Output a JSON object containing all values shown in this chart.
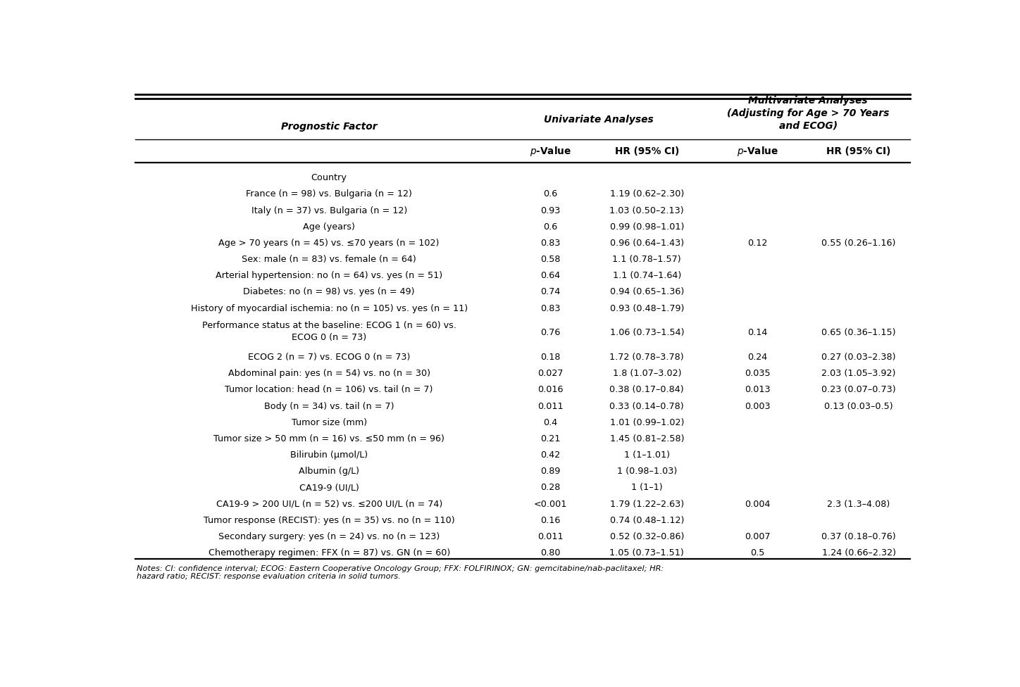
{
  "header1": "Prognostic Factor",
  "header2": "Univariate Analyses",
  "header3": "Multivariate Analyses\n(Adjusting for Age > 70 Years\nand ECOG)",
  "subheaders": [
    "p-Value",
    "HR (95% CI)",
    "p-Value",
    "HR (95% CI)"
  ],
  "notes": "Notes: CI: confidence interval; ECOG: Eastern Cooperative Oncology Group; FFX: FOLFIRINOX; GN: gemcitabine/nab-paclitaxel; HR:\nhazard ratio; RECIST: response evaluation criteria in solid tumors.",
  "rows": [
    {
      "factor": "Country",
      "pval1": "",
      "hr1": "",
      "pval2": "",
      "hr2": ""
    },
    {
      "factor": "France (n = 98) vs. Bulgaria (n = 12)",
      "pval1": "0.6",
      "hr1": "1.19 (0.62–2.30)",
      "pval2": "",
      "hr2": ""
    },
    {
      "factor": "Italy (n = 37) vs. Bulgaria (n = 12)",
      "pval1": "0.93",
      "hr1": "1.03 (0.50–2.13)",
      "pval2": "",
      "hr2": ""
    },
    {
      "factor": "Age (years)",
      "pval1": "0.6",
      "hr1": "0.99 (0.98–1.01)",
      "pval2": "",
      "hr2": ""
    },
    {
      "factor": "Age > 70 years (n = 45) vs. ≤70 years (n = 102)",
      "pval1": "0.83",
      "hr1": "0.96 (0.64–1.43)",
      "pval2": "0.12",
      "hr2": "0.55 (0.26–1.16)"
    },
    {
      "factor": "Sex: male (n = 83) vs. female (n = 64)",
      "pval1": "0.58",
      "hr1": "1.1 (0.78–1.57)",
      "pval2": "",
      "hr2": ""
    },
    {
      "factor": "Arterial hypertension: no (n = 64) vs. yes (n = 51)",
      "pval1": "0.64",
      "hr1": "1.1 (0.74–1.64)",
      "pval2": "",
      "hr2": ""
    },
    {
      "factor": "Diabetes: no (n = 98) vs. yes (n = 49)",
      "pval1": "0.74",
      "hr1": "0.94 (0.65–1.36)",
      "pval2": "",
      "hr2": ""
    },
    {
      "factor": "History of myocardial ischemia: no (n = 105) vs. yes (n = 11)",
      "pval1": "0.83",
      "hr1": "0.93 (0.48–1.79)",
      "pval2": "",
      "hr2": ""
    },
    {
      "factor": "Performance status at the baseline: ECOG 1 (n = 60) vs.\nECOG 0 (n = 73)",
      "pval1": "0.76",
      "hr1": "1.06 (0.73–1.54)",
      "pval2": "0.14",
      "hr2": "0.65 (0.36–1.15)"
    },
    {
      "factor": "ECOG 2 (n = 7) vs. ECOG 0 (n = 73)",
      "pval1": "0.18",
      "hr1": "1.72 (0.78–3.78)",
      "pval2": "0.24",
      "hr2": "0.27 (0.03–2.38)"
    },
    {
      "factor": "Abdominal pain: yes (n = 54) vs. no (n = 30)",
      "pval1": "0.027",
      "hr1": "1.8 (1.07–3.02)",
      "pval2": "0.035",
      "hr2": "2.03 (1.05–3.92)"
    },
    {
      "factor": "Tumor location: head (n = 106) vs. tail (n = 7)",
      "pval1": "0.016",
      "hr1": "0.38 (0.17–0.84)",
      "pval2": "0.013",
      "hr2": "0.23 (0.07–0.73)"
    },
    {
      "factor": "Body (n = 34) vs. tail (n = 7)",
      "pval1": "0.011",
      "hr1": "0.33 (0.14–0.78)",
      "pval2": "0.003",
      "hr2": "0.13 (0.03–0.5)"
    },
    {
      "factor": "Tumor size (mm)",
      "pval1": "0.4",
      "hr1": "1.01 (0.99–1.02)",
      "pval2": "",
      "hr2": ""
    },
    {
      "factor": "Tumor size > 50 mm (n = 16) vs. ≤50 mm (n = 96)",
      "pval1": "0.21",
      "hr1": "1.45 (0.81–2.58)",
      "pval2": "",
      "hr2": ""
    },
    {
      "factor": "Bilirubin (μmol/L)",
      "pval1": "0.42",
      "hr1": "1 (1–1.01)",
      "pval2": "",
      "hr2": ""
    },
    {
      "factor": "Albumin (g/L)",
      "pval1": "0.89",
      "hr1": "1 (0.98–1.03)",
      "pval2": "",
      "hr2": ""
    },
    {
      "factor": "CA19-9 (UI/L)",
      "pval1": "0.28",
      "hr1": "1 (1–1)",
      "pval2": "",
      "hr2": ""
    },
    {
      "factor": "CA19-9 > 200 UI/L (n = 52) vs. ≤200 UI/L (n = 74)",
      "pval1": "<0.001",
      "hr1": "1.79 (1.22–2.63)",
      "pval2": "0.004",
      "hr2": "2.3 (1.3–4.08)"
    },
    {
      "factor": "Tumor response (RECIST): yes (n = 35) vs. no (n = 110)",
      "pval1": "0.16",
      "hr1": "0.74 (0.48–1.12)",
      "pval2": "",
      "hr2": ""
    },
    {
      "factor": "Secondary surgery: yes (n = 24) vs. no (n = 123)",
      "pval1": "0.011",
      "hr1": "0.52 (0.32–0.86)",
      "pval2": "0.007",
      "hr2": "0.37 (0.18–0.76)"
    },
    {
      "factor": "Chemotherapy regimen: FFX (n = 87) vs. GN (n = 60)",
      "pval1": "0.80",
      "hr1": "1.05 (0.73–1.51)",
      "pval2": "0.5",
      "hr2": "1.24 (0.66–2.32)"
    }
  ]
}
